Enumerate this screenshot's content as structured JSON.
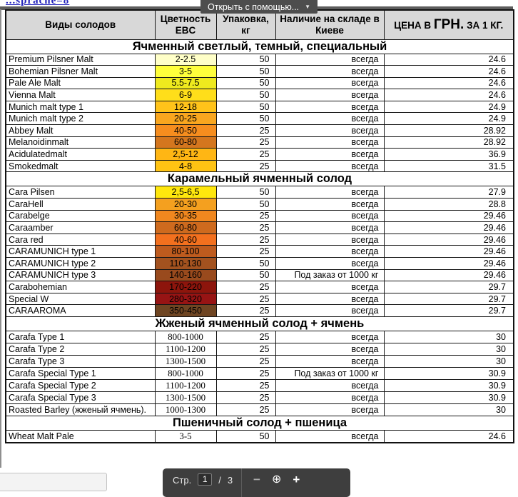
{
  "browser": {
    "partial_link": "...sprache=8"
  },
  "viewer": {
    "open_with_label": "Открыть с помощью...",
    "dropdown_caret": "▼",
    "toolbar": {
      "page_label": "Стр.",
      "current_page": "1",
      "page_separator": "/",
      "total_pages": "3",
      "zoom_out_icon": "−",
      "zoom_fit_icon": "⊕",
      "zoom_in_icon": "+"
    }
  },
  "table": {
    "columns": [
      "Виды солодов",
      "Цветность EBC",
      "Упаковка, кг",
      "Наличие на складе в Киеве"
    ],
    "price_header": {
      "prefix": "ЦЕНА В ",
      "currency": "ГРН.",
      "suffix": " ЗА 1 КГ."
    },
    "sections": [
      {
        "title": "Ячменный светлый, темный, специальный",
        "rows": [
          {
            "name": "Premium Pilsner Malt",
            "ebc": "2-2.5",
            "ebc_color": "#FFFFC8",
            "pack": "50",
            "stock": "всегда",
            "price": "24.6"
          },
          {
            "name": "Bohemian Pilsner Malt",
            "ebc": "3-5",
            "ebc_color": "#FFFF3C",
            "pack": "50",
            "stock": "всегда",
            "price": "24.6"
          },
          {
            "name": "Pale Ale Malt",
            "ebc": "5.5-7.5",
            "ebc_color": "#EFEA1E",
            "pack": "50",
            "stock": "всегда",
            "price": "24.6"
          },
          {
            "name": "Vienna Malt",
            "ebc": "6-9",
            "ebc_color": "#FFDE1A",
            "pack": "50",
            "stock": "всегда",
            "price": "24.6"
          },
          {
            "name": "Munich malt  type 1",
            "ebc": "12-18",
            "ebc_color": "#FFC31A",
            "pack": "50",
            "stock": "всегда",
            "price": "24.9"
          },
          {
            "name": "Munich malt  type 2",
            "ebc": "20-25",
            "ebc_color": "#F9A61F",
            "pack": "50",
            "stock": "всегда",
            "price": "24.9"
          },
          {
            "name": "Abbey Malt",
            "ebc": "40-50",
            "ebc_color": "#F68D1E",
            "pack": "25",
            "stock": "всегда",
            "price": "28.92"
          },
          {
            "name": "Melanoidinmalt",
            "ebc": "60-80",
            "ebc_color": "#D4761E",
            "pack": "25",
            "stock": "всегда",
            "price": "28.92"
          },
          {
            "name": "Acidulatedmalt",
            "ebc": "2,5-12",
            "ebc_color": "#FFB614",
            "pack": "25",
            "stock": "всегда",
            "price": "36.9"
          },
          {
            "name": "Smokedmalt",
            "ebc": "4-8",
            "ebc_color": "#FFC313",
            "pack": "25",
            "stock": "всегда",
            "price": "31.5"
          }
        ]
      },
      {
        "title": "Карамельный ячменный солод",
        "rows": [
          {
            "name": "Cara Pilsen",
            "ebc": "2,5-6,5",
            "ebc_color": "#FFE70D",
            "pack": "50",
            "stock": "всегда",
            "price": "27.9"
          },
          {
            "name": "CaraHell",
            "ebc": "20-30",
            "ebc_color": "#F4A01F",
            "pack": "50",
            "stock": "всегда",
            "price": "28.8"
          },
          {
            "name": "Carabelge",
            "ebc": "30-35",
            "ebc_color": "#F0871F",
            "pack": "25",
            "stock": "всегда",
            "price": "29.46"
          },
          {
            "name": "Caraamber",
            "ebc": "60-80",
            "ebc_color": "#CE6A1E",
            "pack": "25",
            "stock": "всегда",
            "price": "29.46"
          },
          {
            "name": "Cara red",
            "ebc": "40-60",
            "ebc_color": "#F3701E",
            "pack": "25",
            "stock": "всегда",
            "price": "29.46"
          },
          {
            "name": "CARAMUNICH type 1",
            "ebc": "80-100",
            "ebc_color": "#BE5B1E",
            "pack": "25",
            "stock": "всегда",
            "price": "29.46"
          },
          {
            "name": "CARAMUNICH  type 2",
            "ebc": "110-130",
            "ebc_color": "#A3521F",
            "pack": "50",
            "stock": "всегда",
            "price": "29.46"
          },
          {
            "name": "CARAMUNICH  type 3",
            "ebc": "140-160",
            "ebc_color": "#994A1D",
            "pack": "50",
            "stock": "Под заказ от 1000 кг",
            "price": "29.46"
          },
          {
            "name": "Carabohemian",
            "ebc": "170-220",
            "ebc_color": "#8D150C",
            "pack": "25",
            "stock": "всегда",
            "price": "29.7"
          },
          {
            "name": "Special W",
            "ebc": "280-320",
            "ebc_color": "#971414",
            "pack": "25",
            "stock": "всегда",
            "price": "29.7"
          },
          {
            "name": "CARAAROMA",
            "ebc": "350-450",
            "ebc_color": "#6F4522",
            "pack": "25",
            "stock": "всегда",
            "price": "29.7"
          }
        ]
      },
      {
        "title": "Жженый ячменный солод + ячмень",
        "rows": [
          {
            "name": "Carafa Type 1",
            "ebc": "800-1000",
            "ebc_color": null,
            "pack": "25",
            "stock": "всегда",
            "price": "30"
          },
          {
            "name": "Carafa Type 2",
            "ebc": "1100-1200",
            "ebc_color": null,
            "pack": "25",
            "stock": "всегда",
            "price": "30"
          },
          {
            "name": "Carafa  Type 3",
            "ebc": "1300-1500",
            "ebc_color": null,
            "pack": "25",
            "stock": "всегда",
            "price": "30"
          },
          {
            "name": "Carafa Special  Type 1",
            "ebc": "800-1000",
            "ebc_color": null,
            "pack": "25",
            "stock": "Под заказ от 1000 кг",
            "price": "30.9"
          },
          {
            "name": "Carafa  Special Type 2",
            "ebc": "1100-1200",
            "ebc_color": null,
            "pack": "25",
            "stock": "всегда",
            "price": "30.9"
          },
          {
            "name": "Carafa Special Type 3",
            "ebc": "1300-1500",
            "ebc_color": null,
            "pack": "25",
            "stock": "всегда",
            "price": "30.9"
          },
          {
            "name": "Roasted Barley (жженый ячмень).",
            "ebc": "1000-1300",
            "ebc_color": null,
            "pack": "25",
            "stock": "всегда",
            "price": "30"
          }
        ]
      },
      {
        "title": "Пшеничный солод + пшеница",
        "rows": [
          {
            "name": "Wheat Malt Pale",
            "ebc": "3-5",
            "ebc_color": null,
            "pack": "50",
            "stock": "всегда",
            "price": "24.6"
          }
        ]
      }
    ]
  }
}
